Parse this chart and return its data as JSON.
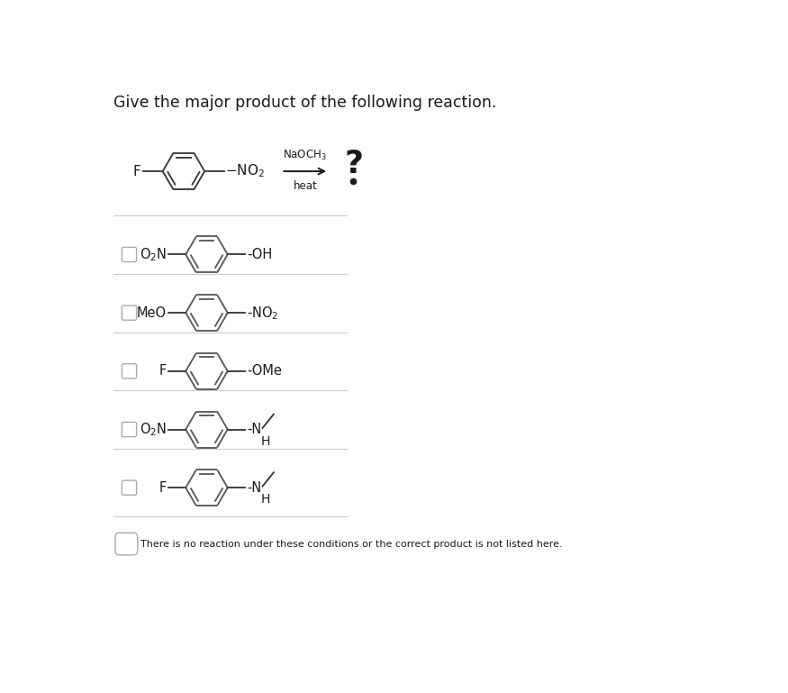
{
  "title": "Give the major product of the following reaction.",
  "background_color": "#ffffff",
  "text_color": "#1a1a1a",
  "title_fontsize": 12.5,
  "fig_width": 8.75,
  "fig_height": 7.69,
  "dpi": 100,
  "options": [
    {
      "left": "O₂N",
      "right": "-OH"
    },
    {
      "left": "MeO",
      "right": "-NO₂"
    },
    {
      "left": "F",
      "right": "-OMe"
    },
    {
      "left": "O₂N",
      "right": "-N"
    },
    {
      "left": "F",
      "right": "-N"
    }
  ]
}
